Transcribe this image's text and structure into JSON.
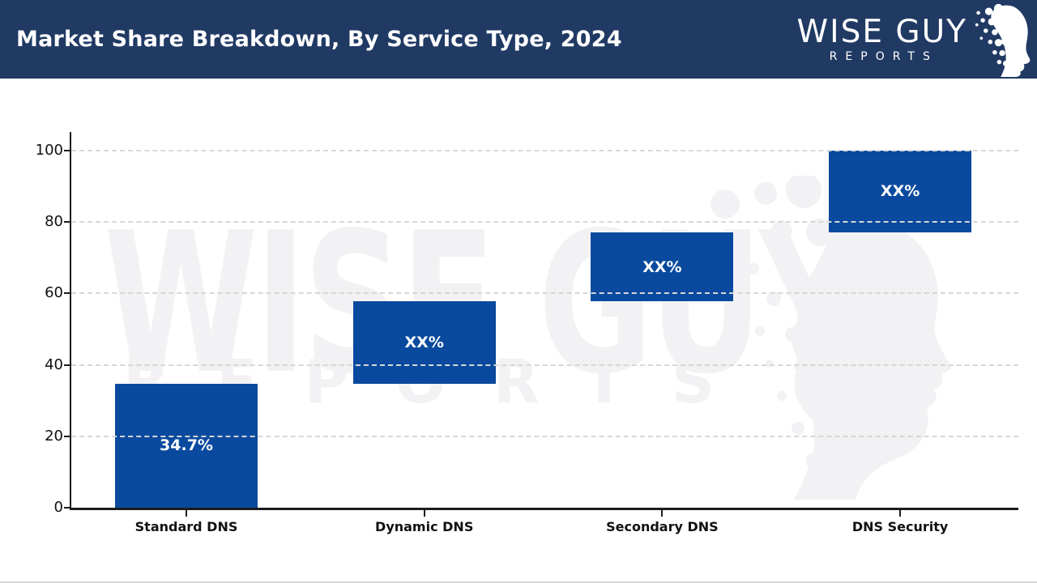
{
  "page": {
    "footer_line_color": "#d8d8d8"
  },
  "header": {
    "bg_color": "#203a64",
    "title": "Market Share Breakdown, By Service Type, 2024",
    "logo": {
      "name": "WISE GUY",
      "subtitle": "REPORTS"
    }
  },
  "watermark": {
    "line1": "WISE GUY",
    "line2": "REPORTS"
  },
  "chart_data": {
    "type": "bar",
    "subtype": "waterfall",
    "title": "Market Share Breakdown, By Service Type, 2024",
    "categories": [
      "Standard DNS",
      "Dynamic DNS",
      "Secondary DNS",
      "DNS Security"
    ],
    "series": [
      {
        "name": "Market share (%)",
        "segments": [
          {
            "category": "Standard DNS",
            "start": 0,
            "end": 34.7,
            "label": "34.7%"
          },
          {
            "category": "Dynamic DNS",
            "start": 34.7,
            "end": 57.8,
            "label": "XX%"
          },
          {
            "category": "Secondary DNS",
            "start": 57.8,
            "end": 77.1,
            "label": "XX%"
          },
          {
            "category": "DNS Security",
            "start": 77.1,
            "end": 100,
            "label": "XX%"
          }
        ]
      }
    ],
    "xlabel": "",
    "ylabel": "",
    "yticks": [
      0,
      20,
      40,
      60,
      80,
      100
    ],
    "ylim": [
      0,
      105
    ],
    "grid": {
      "axis": "y",
      "style": "dashed",
      "color": "#d7d7d7",
      "drawn_above_bars": true
    },
    "legend": "none",
    "bar_color": "#0a4a9e",
    "bar_label_color": "#ffffff",
    "axis_color": "#1c1c1c",
    "tick_label_color": "#111111"
  }
}
